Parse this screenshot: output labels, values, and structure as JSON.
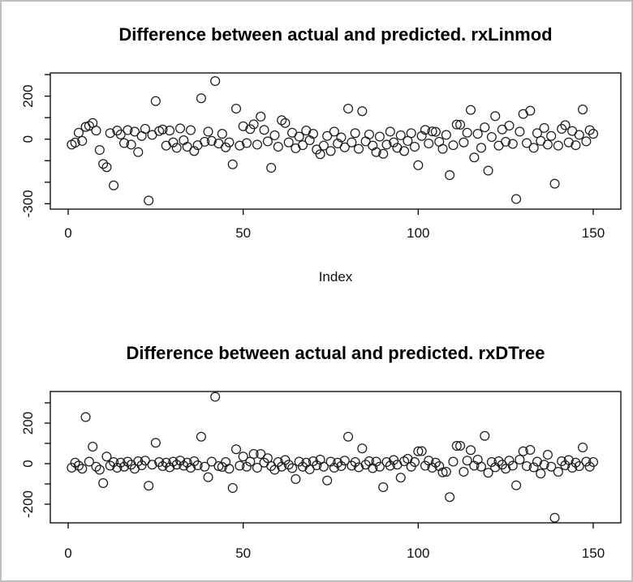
{
  "colors": {
    "frame_border": "#bfbfbf",
    "background": "#ffffff",
    "plot_foreground": "#000000"
  },
  "chart_data": [
    {
      "type": "scatter",
      "title": "Difference between actual and predicted. rxLinmod",
      "xlabel": "Index",
      "marker": "open-circle",
      "x_is_index": true,
      "n_points": 150,
      "xlim": [
        -5,
        158
      ],
      "ylim": [
        -325,
        308
      ],
      "x_ticks": [
        0,
        50,
        100,
        150
      ],
      "y_ticks": [
        300,
        200,
        100,
        0,
        -100,
        -200,
        -300
      ],
      "y_labeled_ticks": [
        200,
        0,
        -300
      ],
      "y": [
        -25,
        -16,
        30,
        -8,
        57,
        62,
        75,
        40,
        -50,
        -115,
        -130,
        28,
        -215,
        40,
        22,
        -18,
        42,
        -25,
        35,
        -60,
        15,
        48,
        -285,
        20,
        177,
        38,
        45,
        -30,
        40,
        -15,
        -40,
        50,
        -5,
        -35,
        42,
        -55,
        -28,
        190,
        -12,
        35,
        -8,
        270,
        -20,
        25,
        -38,
        -15,
        -117,
        142,
        -30,
        60,
        -18,
        47,
        69,
        -25,
        105,
        43,
        -10,
        -133,
        18,
        -35,
        88,
        75,
        -15,
        30,
        -42,
        12,
        -28,
        40,
        -5,
        25,
        -48,
        -70,
        -30,
        15,
        -55,
        35,
        -20,
        8,
        -38,
        142,
        -15,
        28,
        -45,
        130,
        -10,
        22,
        -30,
        -60,
        12,
        -68,
        -25,
        35,
        -15,
        -40,
        18,
        -55,
        -8,
        28,
        -35,
        -121,
        15,
        43,
        -20,
        36,
        34,
        -12,
        -45,
        20,
        -167,
        -28,
        68,
        67,
        -15,
        30,
        136,
        -85,
        25,
        -40,
        55,
        -146,
        10,
        107,
        -30,
        45,
        -12,
        63,
        -22,
        -278,
        35,
        117,
        -18,
        132,
        -40,
        28,
        -8,
        52,
        -25,
        15,
        -207,
        -30,
        48,
        65,
        -15,
        38,
        -28,
        20,
        138,
        -10,
        42,
        25
      ]
    },
    {
      "type": "scatter",
      "title": "Difference between actual and predicted. rxDTree",
      "xlabel": "",
      "marker": "open-circle",
      "x_is_index": true,
      "n_points": 150,
      "xlim": [
        -5,
        158
      ],
      "ylim": [
        -292,
        356
      ],
      "x_ticks": [
        0,
        50,
        100,
        150
      ],
      "y_ticks": [
        300,
        200,
        100,
        0,
        -100,
        -200
      ],
      "y_labeled_ticks": [
        200,
        0,
        -200
      ],
      "y": [
        -20,
        5,
        -10,
        -25,
        230,
        10,
        84,
        -15,
        -30,
        -96,
        35,
        -10,
        8,
        -20,
        5,
        -15,
        10,
        -5,
        -25,
        12,
        -8,
        15,
        -109,
        -5,
        103,
        8,
        -12,
        5,
        -18,
        10,
        -5,
        15,
        -10,
        5,
        -20,
        12,
        -8,
        133,
        -15,
        -67,
        10,
        330,
        -12,
        -16,
        8,
        -25,
        -120,
        71,
        -10,
        35,
        -15,
        10,
        48,
        -20,
        48,
        5,
        27,
        -12,
        -30,
        8,
        -15,
        18,
        -5,
        -22,
        -76,
        10,
        -15,
        5,
        -28,
        12,
        -8,
        20,
        -15,
        -83,
        10,
        -20,
        5,
        -12,
        15,
        133,
        -10,
        8,
        -18,
        75,
        -5,
        12,
        -22,
        10,
        -15,
        -116,
        8,
        -10,
        18,
        -5,
        -69,
        12,
        24,
        -15,
        8,
        61,
        62,
        -10,
        15,
        -20,
        5,
        -12,
        -43,
        -40,
        -165,
        10,
        88,
        88,
        -40,
        15,
        67,
        -10,
        20,
        -15,
        137,
        -45,
        8,
        -18,
        12,
        -5,
        -25,
        15,
        -10,
        -107,
        20,
        61,
        -12,
        68,
        -18,
        10,
        -49,
        -5,
        44,
        -15,
        -267,
        -40,
        12,
        -8,
        18,
        -20,
        5,
        -12,
        80,
        10,
        -15,
        8
      ]
    }
  ]
}
